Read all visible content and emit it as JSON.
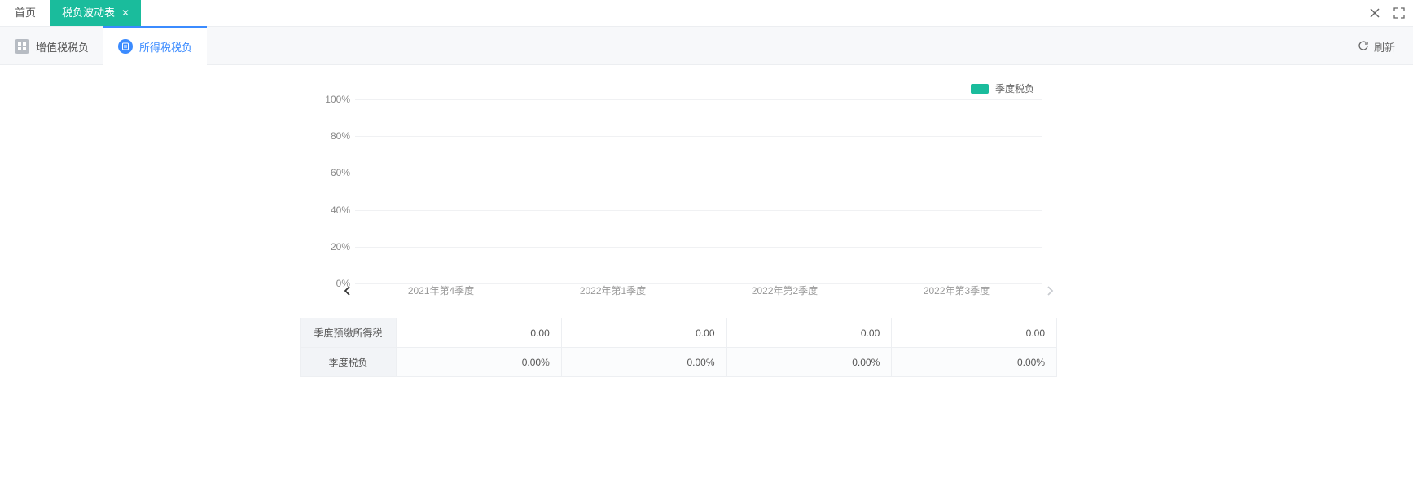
{
  "top_tabs": {
    "home_label": "首页",
    "active_tab_label": "税负波动表"
  },
  "sub_tabs": {
    "items": [
      {
        "label": "增值税税负"
      },
      {
        "label": "所得税税负"
      }
    ],
    "selected_index": 1
  },
  "refresh_label": "刷新",
  "chart": {
    "type": "bar",
    "legend_label": "季度税负",
    "legend_color": "#1abc9c",
    "x_labels": [
      "2021年第4季度",
      "2022年第1季度",
      "2022年第2季度",
      "2022年第3季度"
    ],
    "y_ticks": [
      "100%",
      "80%",
      "60%",
      "40%",
      "20%",
      "0%"
    ],
    "ylim": [
      0,
      100
    ],
    "ytick_step": 20,
    "grid_color": "#f0f1f3",
    "axis_label_color": "#888888",
    "values": [
      0,
      0,
      0,
      0
    ]
  },
  "table": {
    "row_headers": [
      "季度预缴所得税",
      "季度税负"
    ],
    "rows": [
      [
        "0.00",
        "0.00",
        "0.00",
        "0.00"
      ],
      [
        "0.00%",
        "0.00%",
        "0.00%",
        "0.00%"
      ]
    ]
  },
  "colors": {
    "accent_green": "#1abc9c",
    "accent_blue": "#3b8bff",
    "bg_subbar": "#f7f8fa",
    "border": "#eceef1",
    "text_muted": "#888888"
  }
}
